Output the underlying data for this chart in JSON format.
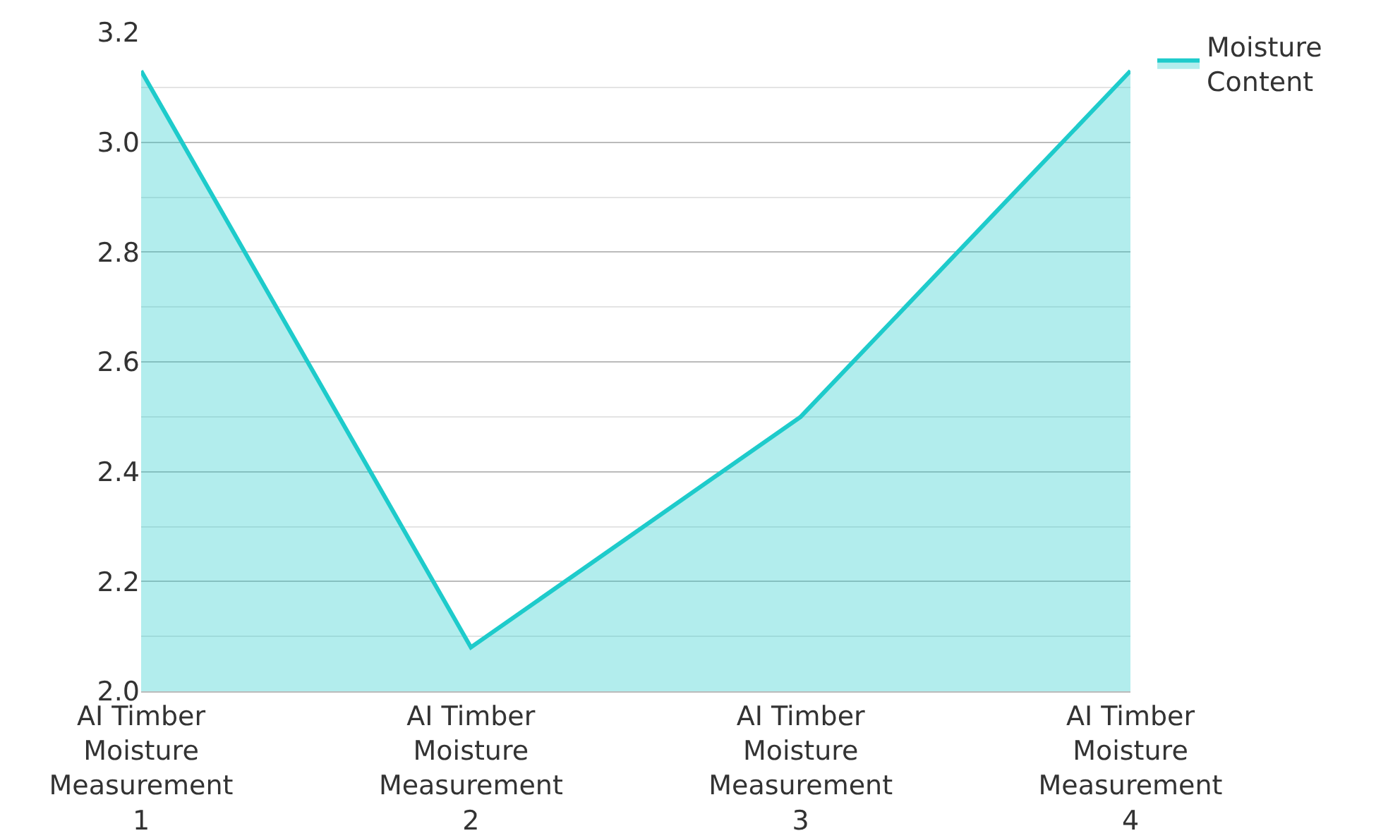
{
  "chart_data": {
    "type": "area",
    "categories": [
      "AI Timber Moisture Measurement 1",
      "AI Timber Moisture Measurement 2",
      "AI Timber Moisture Measurement 3",
      "AI Timber Moisture Measurement 4"
    ],
    "series": [
      {
        "name": "Moisture Content",
        "color": "#1ecbcb",
        "values": [
          3.13,
          2.08,
          2.5,
          3.13
        ]
      }
    ],
    "ylim": [
      2.0,
      3.2
    ],
    "yticks": [
      {
        "value": 2.0,
        "label": "2.0"
      },
      2.2,
      2.4,
      2.6,
      2.8,
      {
        "value": 3.0,
        "label": "3.0"
      },
      3.2
    ],
    "grid": true,
    "legend": "top right",
    "marker": "none",
    "line_style": "solid"
  }
}
